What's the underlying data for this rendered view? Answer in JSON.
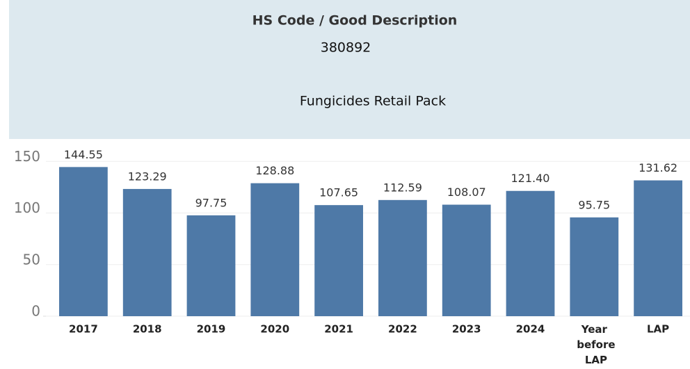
{
  "header": {
    "title": "HS Code / Good Description",
    "code": "380892",
    "description": "Fungicides Retail Pack"
  },
  "chart_data": {
    "type": "bar",
    "categories": [
      "2017",
      "2018",
      "2019",
      "2020",
      "2021",
      "2022",
      "2023",
      "2024",
      "Year before LAP",
      "LAP"
    ],
    "values": [
      144.55,
      123.29,
      97.75,
      128.88,
      107.65,
      112.59,
      108.07,
      121.4,
      95.75,
      131.62
    ],
    "value_labels": [
      "144.55",
      "123.29",
      "97.75",
      "128.88",
      "107.65",
      "112.59",
      "108.07",
      "121.40",
      "95.75",
      "131.62"
    ],
    "color": "#4e79a7",
    "ylim": [
      0,
      165
    ],
    "yticks": [
      0,
      50,
      100,
      150
    ],
    "grid": true
  }
}
